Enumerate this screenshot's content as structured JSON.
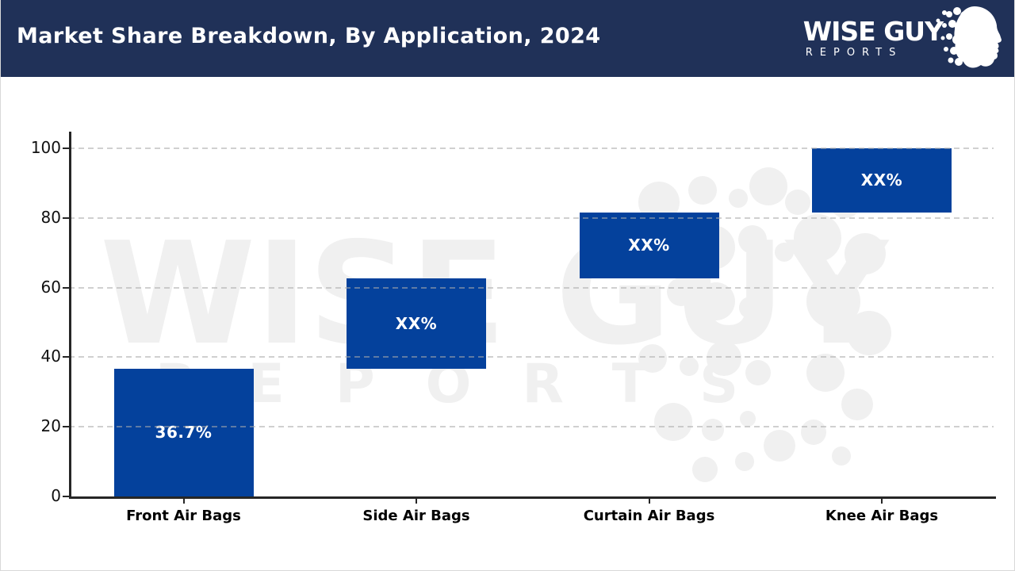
{
  "header": {
    "title": "Market Share Breakdown, By Application, 2024",
    "background_color": "#203158",
    "logo": {
      "wordmark": "WISE GUY",
      "subtext": "REPORTS"
    }
  },
  "watermark": {
    "wordmark": "WISE GUY",
    "subtext": "REPORTS"
  },
  "chart_data": {
    "type": "bar",
    "variant": "waterfall",
    "title": "Market Share Breakdown, By Application, 2024",
    "categories": [
      "Front Air Bags",
      "Side Air Bags",
      "Curtain Air Bags",
      "Knee Air Bags"
    ],
    "segments": [
      {
        "category": "Front Air Bags",
        "start": 0,
        "end": 36.7,
        "label": "36.7%"
      },
      {
        "category": "Side Air Bags",
        "start": 36.7,
        "end": 62.7,
        "label": "XX%"
      },
      {
        "category": "Curtain Air Bags",
        "start": 62.7,
        "end": 81.6,
        "label": "XX%"
      },
      {
        "category": "Knee Air Bags",
        "start": 81.6,
        "end": 100,
        "label": "XX%"
      }
    ],
    "yticks": [
      0,
      20,
      40,
      60,
      80,
      100
    ],
    "ylim": [
      0,
      105
    ],
    "xlabel": "",
    "ylabel": "",
    "grid": "horizontal-dashed",
    "legend": "none",
    "bar_color": "#04419C",
    "bar_label_color": "#ffffff",
    "axis_color": "#262626",
    "grid_color": "#d8d8d8",
    "tick_label_color": "#111111",
    "category_label_color": "#000000"
  }
}
